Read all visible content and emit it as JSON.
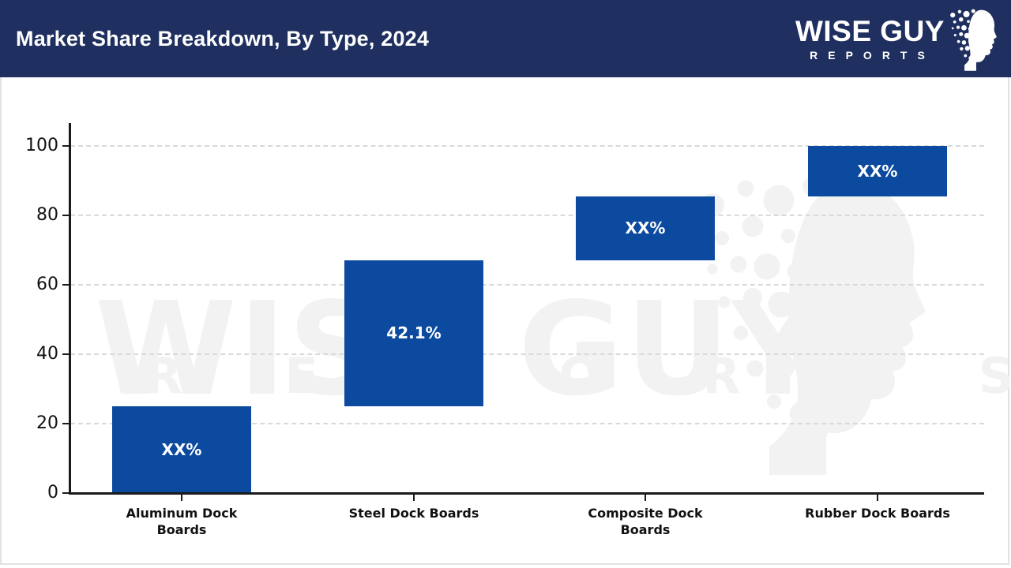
{
  "header": {
    "title": "Market Share Breakdown, By Type, 2024",
    "background_color": "#1f2f5f",
    "text_color": "#ffffff",
    "brand": {
      "line1": "WISE GUY",
      "line2": "REPORTS"
    }
  },
  "watermark": {
    "line1": "WISE GUY",
    "line2": "R E P O R T S",
    "color": "#f2f2f2"
  },
  "chart_data": {
    "type": "bar",
    "subtype": "waterfall-stacked-breakdown",
    "title": "Market Share Breakdown, By Type, 2024",
    "categories": [
      "Aluminum Dock Boards",
      "Steel Dock Boards",
      "Composite Dock Boards",
      "Rubber Dock Boards"
    ],
    "category_label_lines": [
      [
        "Aluminum Dock",
        "Boards"
      ],
      [
        "Steel Dock Boards"
      ],
      [
        "Composite Dock",
        "Boards"
      ],
      [
        "Rubber Dock Boards"
      ]
    ],
    "segments": [
      {
        "category": "Aluminum Dock Boards",
        "start": 0,
        "end": 25,
        "label": "XX%"
      },
      {
        "category": "Steel Dock Boards",
        "start": 25,
        "end": 67.1,
        "label": "42.1%",
        "value": 42.1
      },
      {
        "category": "Composite Dock Boards",
        "start": 67.1,
        "end": 85.5,
        "label": "XX%"
      },
      {
        "category": "Rubber Dock Boards",
        "start": 85.5,
        "end": 100,
        "label": "XX%"
      }
    ],
    "yticks": [
      0,
      20,
      40,
      60,
      80,
      100
    ],
    "ylim": [
      0,
      106
    ],
    "xlabel": "",
    "ylabel": "",
    "grid": "horizontal-dashed",
    "legend": "none",
    "bar_color": "#0c4a9f",
    "bar_label_color": "#ffffff",
    "axis_color": "#1a1a1a",
    "grid_color": "#d9d9d9",
    "tick_label_color": "#111111"
  }
}
